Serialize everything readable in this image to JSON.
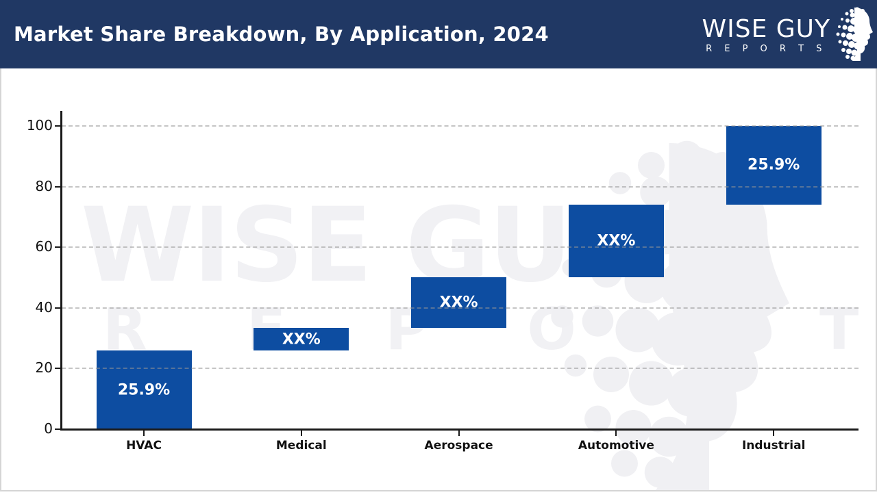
{
  "header": {
    "title": "Market Share Breakdown, By Application, 2024",
    "logo": {
      "line1": "WISE GUY",
      "line2": "R E P O R T S"
    }
  },
  "watermark": {
    "line1": "WISE GUY",
    "line2": "R E P O R T S"
  },
  "chart_data": {
    "type": "bar",
    "subtype": "floating-waterfall",
    "title": "Market Share Breakdown, By Application, 2024",
    "xlabel": "",
    "ylabel": "",
    "categories": [
      "HVAC",
      "Medical",
      "Aerospace",
      "Automotive",
      "Industrial"
    ],
    "segments": [
      {
        "category": "HVAC",
        "start": 0,
        "end": 25.9,
        "label": "25.9%"
      },
      {
        "category": "Medical",
        "start": 25.9,
        "end": 33.3,
        "label": "XX%"
      },
      {
        "category": "Aerospace",
        "start": 33.3,
        "end": 50.2,
        "label": "XX%"
      },
      {
        "category": "Automotive",
        "start": 50.2,
        "end": 74.1,
        "label": "XX%"
      },
      {
        "category": "Industrial",
        "start": 74.1,
        "end": 100,
        "label": "25.9%"
      }
    ],
    "yticks": [
      0,
      20,
      40,
      60,
      80,
      100
    ],
    "ylim": [
      0,
      105
    ],
    "grid": "horizontal-dashed",
    "legend": "none",
    "bar_color": "#0d4da1",
    "bar_label_color": "#ffffff"
  },
  "colors": {
    "header_bg": "#203864",
    "bar": "#0d4da1",
    "watermark": "#f1f1f4",
    "axis": "#1a1a1a",
    "frame_border": "#d5d5d5",
    "title_text": "#ffffff"
  }
}
